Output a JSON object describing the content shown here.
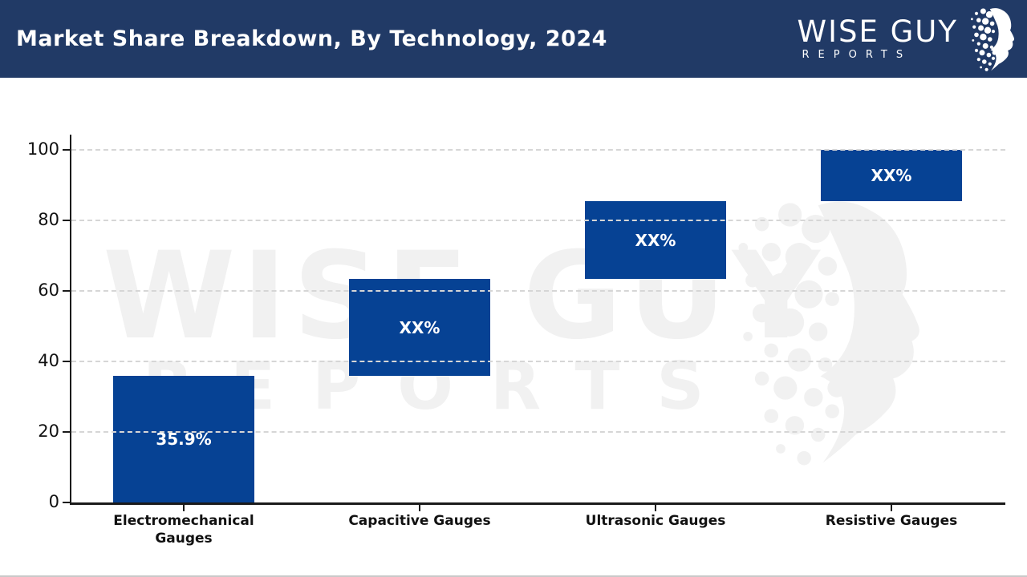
{
  "header": {
    "title": "Market Share Breakdown, By Technology, 2024",
    "logo": {
      "line1": "WISE GUY",
      "line2": "REPORTS"
    }
  },
  "watermark": {
    "line1": "WISE GUY",
    "line2": "REPORTS"
  },
  "chart_data": {
    "type": "bar",
    "subtype": "waterfall",
    "title": "Market Share Breakdown, By Technology, 2024",
    "categories": [
      "Electromechanical Gauges",
      "Capacitive Gauges",
      "Ultrasonic Gauges",
      "Resistive Gauges"
    ],
    "segments": [
      {
        "category": "Electromechanical Gauges",
        "start": 0,
        "end": 35.9,
        "label": "35.9%"
      },
      {
        "category": "Capacitive Gauges",
        "start": 35.9,
        "end": 63.3,
        "label": "XX%"
      },
      {
        "category": "Ultrasonic Gauges",
        "start": 63.3,
        "end": 85.5,
        "label": "XX%"
      },
      {
        "category": "Resistive Gauges",
        "start": 85.5,
        "end": 100,
        "label": "XX%"
      }
    ],
    "y_ticks": [
      0,
      20,
      40,
      60,
      80,
      100
    ],
    "ylim": [
      0,
      104
    ],
    "xlabel": "",
    "ylabel": "",
    "grid": "horizontal-dashed",
    "legend": "none",
    "bar_color": "#064294",
    "header_color": "#213a66"
  }
}
